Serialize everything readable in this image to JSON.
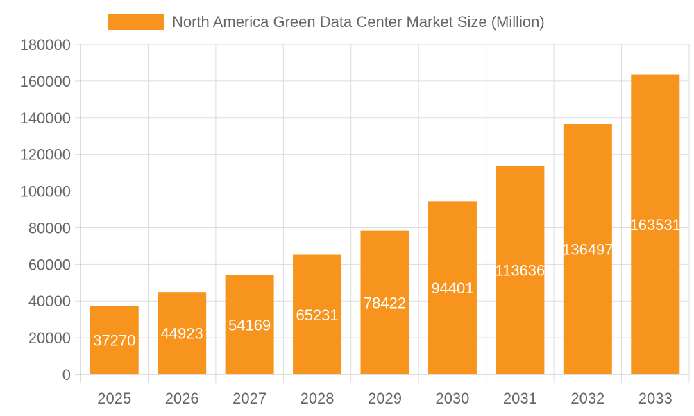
{
  "chart_data": {
    "type": "bar",
    "title": "",
    "xlabel": "",
    "ylabel": "",
    "categories": [
      "2025",
      "2026",
      "2027",
      "2028",
      "2029",
      "2030",
      "2031",
      "2032",
      "2033"
    ],
    "series": [
      {
        "name": "North America Green Data Center Market Size (Million)",
        "values": [
          37270,
          44923,
          54169,
          65231,
          78422,
          94401,
          113636,
          136497,
          163531
        ],
        "color": "#F7941D"
      }
    ],
    "ylim": [
      0,
      180000
    ],
    "yticks": [
      "0",
      "20000",
      "40000",
      "60000",
      "80000",
      "100000",
      "120000",
      "140000",
      "160000",
      "180000"
    ],
    "grid": true,
    "legend": "top",
    "data_labels": true
  }
}
